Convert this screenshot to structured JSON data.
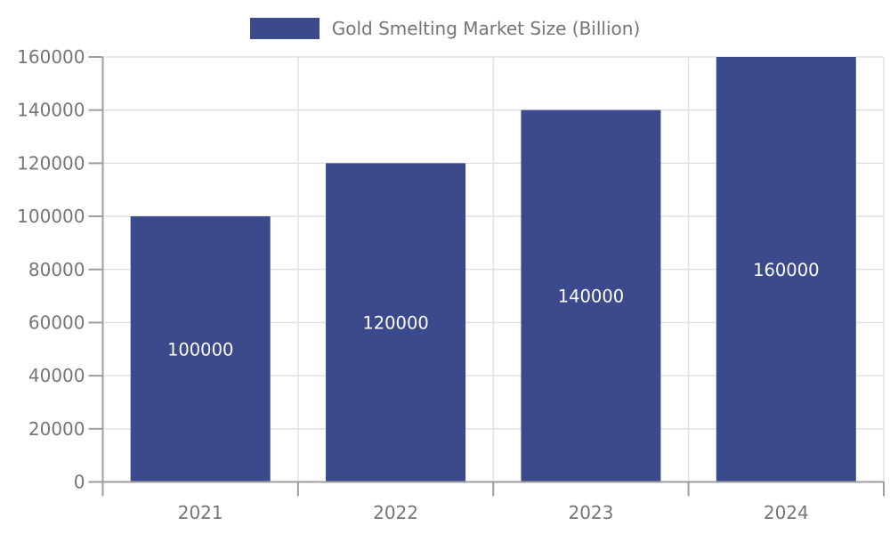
{
  "legend": {
    "label": "Gold Smelting Market Size (Billion)"
  },
  "chart_data": {
    "type": "bar",
    "title": "",
    "categories": [
      "2021",
      "2022",
      "2023",
      "2024"
    ],
    "series": [
      {
        "name": "Gold Smelting Market Size (Billion)",
        "values": [
          100000,
          120000,
          140000,
          160000
        ]
      }
    ],
    "bar_labels": [
      "100000",
      "120000",
      "140000",
      "160000"
    ],
    "xlabel": "",
    "ylabel": "",
    "ylim": [
      0,
      160000
    ],
    "yticks": [
      0,
      20000,
      40000,
      60000,
      80000,
      100000,
      120000,
      140000,
      160000
    ],
    "grid": true,
    "legend_position": "top-center",
    "colors": {
      "bar": "#3A4A8C",
      "bar_label": "#FFFFFF",
      "tick_label": "#757575",
      "grid": "#DFDFDF",
      "axis": "#9E9E9E",
      "background": "#FFFFFF"
    }
  }
}
